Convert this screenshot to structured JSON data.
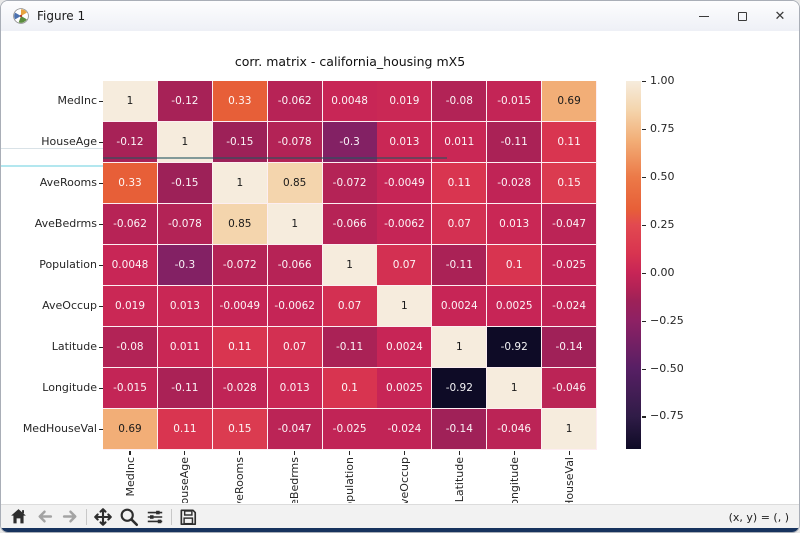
{
  "window": {
    "title": "Figure 1"
  },
  "figure_title": "corr. matrix - california_housing mX5",
  "chart_data": {
    "type": "heatmap",
    "title": "corr. matrix - california_housing mX5",
    "labels": [
      "MedInc",
      "HouseAge",
      "AveRooms",
      "AveBedrms",
      "Population",
      "AveOccup",
      "Latitude",
      "Longitude",
      "MedHouseVal"
    ],
    "matrix": [
      [
        "1",
        "-0.12",
        "0.33",
        "-0.062",
        "0.0048",
        "0.019",
        "-0.08",
        "-0.015",
        "0.69"
      ],
      [
        "-0.12",
        "1",
        "-0.15",
        "-0.078",
        "-0.3",
        "0.013",
        "0.011",
        "-0.11",
        "0.11"
      ],
      [
        "0.33",
        "-0.15",
        "1",
        "0.85",
        "-0.072",
        "-0.0049",
        "0.11",
        "-0.028",
        "0.15"
      ],
      [
        "-0.062",
        "-0.078",
        "0.85",
        "1",
        "-0.066",
        "-0.0062",
        "0.07",
        "0.013",
        "-0.047"
      ],
      [
        "0.0048",
        "-0.3",
        "-0.072",
        "-0.066",
        "1",
        "0.07",
        "-0.11",
        "0.1",
        "-0.025"
      ],
      [
        "0.019",
        "0.013",
        "-0.0049",
        "-0.0062",
        "0.07",
        "1",
        "0.0024",
        "0.0025",
        "-0.024"
      ],
      [
        "-0.08",
        "0.011",
        "0.11",
        "0.07",
        "-0.11",
        "0.0024",
        "1",
        "-0.92",
        "-0.14"
      ],
      [
        "-0.015",
        "-0.11",
        "-0.028",
        "0.013",
        "0.1",
        "0.0025",
        "-0.92",
        "1",
        "-0.046"
      ],
      [
        "0.69",
        "0.11",
        "0.15",
        "-0.047",
        "-0.025",
        "-0.024",
        "-0.14",
        "-0.046",
        "1"
      ]
    ],
    "vmin": -0.92,
    "vmax": 1.0,
    "colormap": "rocket",
    "colorbar_ticks": [
      "1.00",
      "0.75",
      "0.50",
      "0.25",
      "0.00",
      "−0.25",
      "−0.50",
      "−0.75"
    ],
    "colorbar_tick_values": [
      1.0,
      0.75,
      0.5,
      0.25,
      0.0,
      -0.25,
      -0.5,
      -0.75
    ],
    "palette_anchors": [
      {
        "v": -0.92,
        "c": "#0e0b26"
      },
      {
        "v": -0.75,
        "c": "#301c47"
      },
      {
        "v": -0.5,
        "c": "#571f64"
      },
      {
        "v": -0.25,
        "c": "#8e2164"
      },
      {
        "v": -0.15,
        "c": "#9d2158"
      },
      {
        "v": -0.1,
        "c": "#ad2256"
      },
      {
        "v": 0.0,
        "c": "#c72556"
      },
      {
        "v": 0.1,
        "c": "#d83450"
      },
      {
        "v": 0.25,
        "c": "#e24950"
      },
      {
        "v": 0.33,
        "c": "#e75f38"
      },
      {
        "v": 0.5,
        "c": "#ec7a48"
      },
      {
        "v": 0.69,
        "c": "#f2ae77"
      },
      {
        "v": 0.85,
        "c": "#f4d5ad"
      },
      {
        "v": 1.0,
        "c": "#f6ecdd"
      }
    ]
  },
  "toolbar": {
    "icons": [
      "home",
      "back",
      "forward",
      "pan",
      "zoom-to-rect",
      "configure-subplots",
      "save"
    ],
    "status": "(x, y) = (, )"
  },
  "colors": {
    "bottom_strip": "#17335e",
    "toolbar_bg": "#f2f2f2",
    "cell_gap": "#fdeef2"
  }
}
